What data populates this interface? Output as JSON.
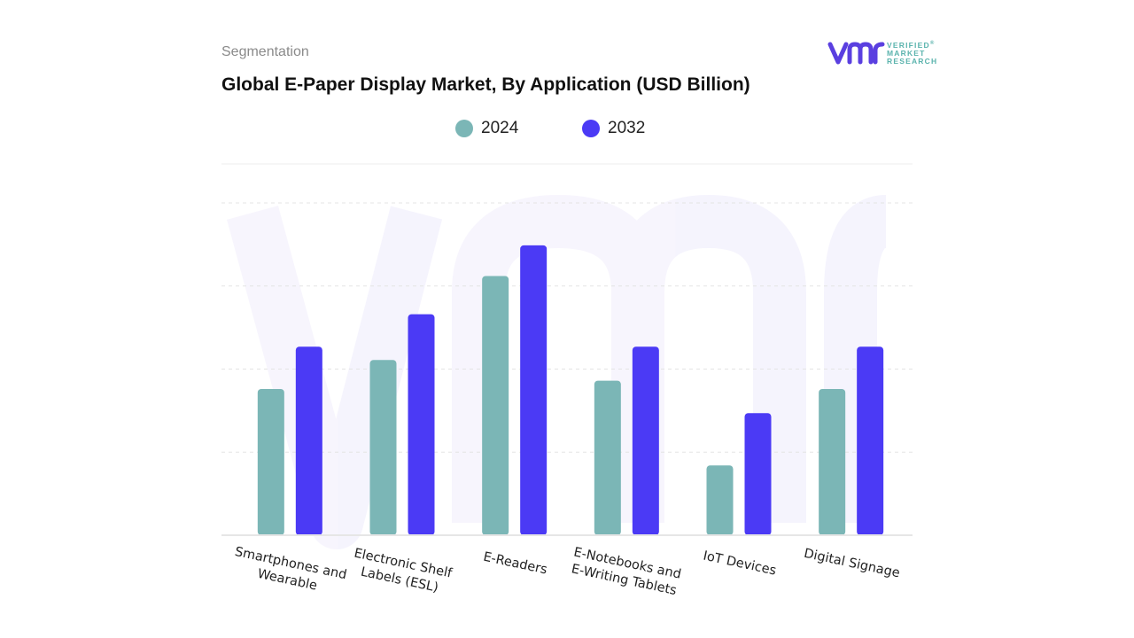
{
  "header": {
    "segmentation": "Segmentation",
    "title": "Global E-Paper Display Market, By Application (USD Billion)"
  },
  "logo": {
    "mark": "vmr",
    "line1": "VERIFIED",
    "line2": "MARKET",
    "line3": "RESEARCH",
    "registered": "®"
  },
  "colors": {
    "series_2024": "#7bb6b6",
    "series_2032": "#4b3af5",
    "logo": "#5a3fe0",
    "logo_text": "#5ab3ad"
  },
  "chart_data": {
    "type": "bar",
    "title": "Global E-Paper Display Market, By Application (USD Billion)",
    "categories": [
      [
        "Smartphones and",
        "Wearable"
      ],
      [
        "Electronic Shelf",
        "Labels (ESL)"
      ],
      [
        "E-Readers"
      ],
      [
        "E-Notebooks and",
        "E-Writing Tablets"
      ],
      [
        "IoT Devices"
      ],
      [
        "Digital Signage"
      ]
    ],
    "series": [
      {
        "name": "2024",
        "values": [
          1.76,
          2.11,
          3.12,
          1.86,
          0.84,
          1.76
        ]
      },
      {
        "name": "2032",
        "values": [
          2.27,
          2.66,
          3.49,
          2.27,
          1.47,
          2.27
        ]
      }
    ],
    "ylim": [
      0,
      4
    ],
    "grid": true,
    "legend": "top-center",
    "xlabel": "",
    "ylabel": ""
  }
}
